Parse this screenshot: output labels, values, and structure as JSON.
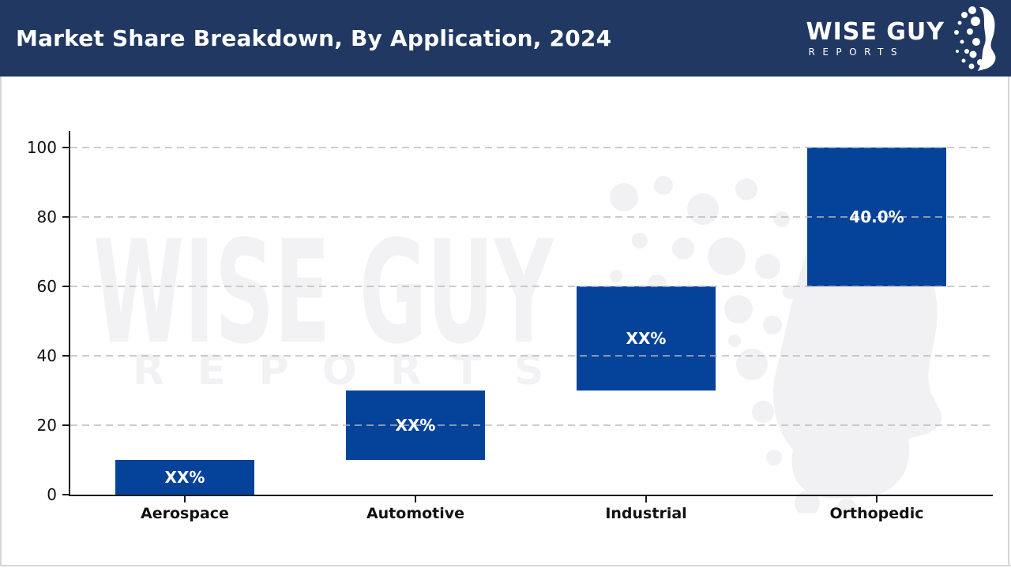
{
  "header": {
    "title": "Market Share Breakdown, By Application, 2024",
    "logo": {
      "line1": "WISE GUY",
      "line2": "REPORTS"
    }
  },
  "watermark": {
    "line1": "WISE GUY",
    "line2": "REPORTS"
  },
  "chart_data": {
    "type": "bar",
    "subtype": "floating-waterfall-segments",
    "title": "Market Share Breakdown, By Application, 2024",
    "categories": [
      "Aerospace",
      "Automotive",
      "Industrial",
      "Orthopedic"
    ],
    "bars": [
      {
        "category": "Aerospace",
        "start": 0,
        "end": 10,
        "segment_value": 10,
        "value_label": "XX%"
      },
      {
        "category": "Automotive",
        "start": 10,
        "end": 30,
        "segment_value": 20,
        "value_label": "XX%"
      },
      {
        "category": "Industrial",
        "start": 30,
        "end": 60,
        "segment_value": 30,
        "value_label": "XX%"
      },
      {
        "category": "Orthopedic",
        "start": 60,
        "end": 100,
        "segment_value": 40,
        "value_label": "40.0%"
      }
    ],
    "yticks": [
      0,
      20,
      40,
      60,
      80,
      100
    ],
    "ylim": [
      0,
      105
    ],
    "xlabel": "",
    "ylabel": "",
    "grid": "dashed-horizontal",
    "legend": false
  },
  "colors": {
    "header_bg": "#203862",
    "bar_blue": "#05429a",
    "bar_label_white": "#ffffff",
    "axis_black": "#1a1a1a",
    "grid_gray": "#dcdcdc",
    "watermark_gray": "#f1f1f3",
    "frame_gray": "#d6d6d6",
    "page_bg": "#ffffff"
  }
}
